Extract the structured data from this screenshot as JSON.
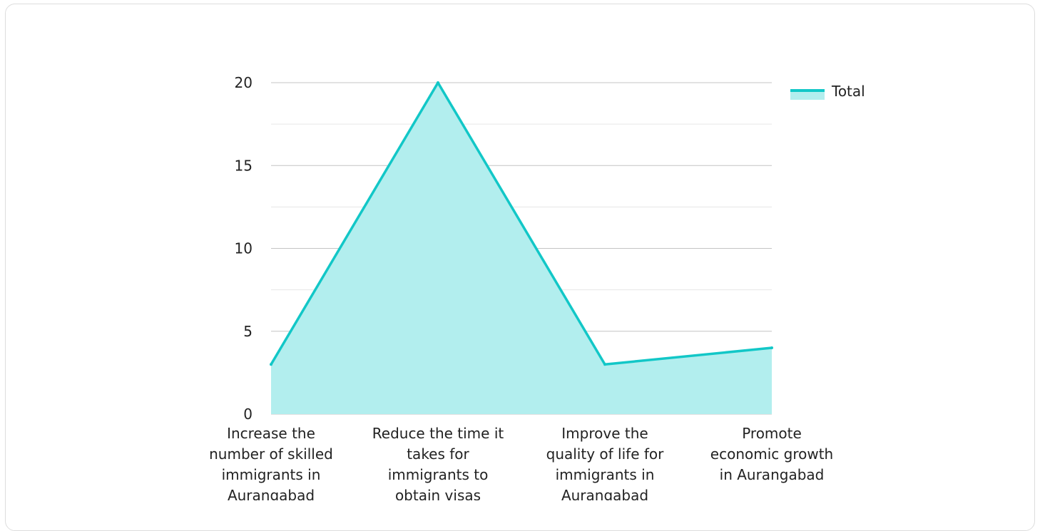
{
  "chart_data": {
    "type": "area",
    "categories": [
      "Increase the number of skilled immigrants in Aurangabad",
      "Reduce the time it takes for immigrants to obtain visas",
      "Improve the quality of life for immigrants in Aurangabad",
      "Promote economic growth in Aurangabad"
    ],
    "category_lines": [
      [
        "Increase the",
        "number of skilled",
        "immigrants in",
        "Aurangabad"
      ],
      [
        "Reduce the time it",
        "takes for",
        "immigrants to",
        "obtain visas"
      ],
      [
        "Improve the",
        "quality of life for",
        "immigrants in",
        "Aurangabad"
      ],
      [
        "Promote",
        "economic growth",
        "in Aurangabad"
      ]
    ],
    "series": [
      {
        "name": "Total",
        "values": [
          3,
          20,
          3,
          4
        ]
      }
    ],
    "y_ticks": [
      "0",
      "5",
      "10",
      "15",
      "20"
    ],
    "ylim": [
      0,
      20
    ],
    "grid": true,
    "legend": "top-right",
    "colors": {
      "line": "#12c7c7",
      "fill": "#b2eeee",
      "grid_major": "#c4c4c4",
      "grid_minor": "#e6e6e6"
    }
  }
}
